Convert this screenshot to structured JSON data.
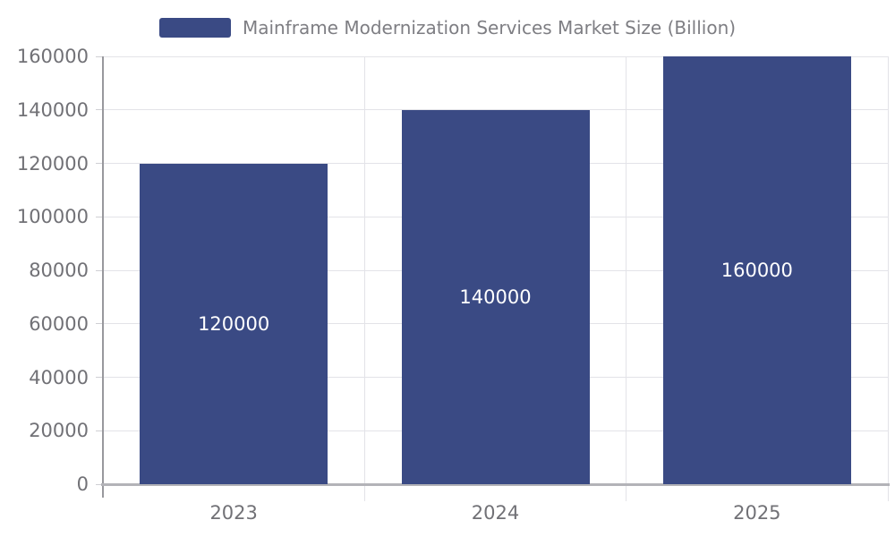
{
  "legend": {
    "label": "Mainframe Modernization Services Market Size (Billion)"
  },
  "chart_data": {
    "type": "bar",
    "title": "Mainframe Modernization Services Market Size (Billion)",
    "categories": [
      "2023",
      "2024",
      "2025"
    ],
    "values": [
      120000,
      140000,
      160000
    ],
    "bar_labels": [
      "120000",
      "140000",
      "160000"
    ],
    "xlabel": "",
    "ylabel": "",
    "ylim": [
      0,
      160000
    ],
    "y_tick_step": 20000,
    "y_tick_labels": [
      "0",
      "20000",
      "40000",
      "60000",
      "80000",
      "100000",
      "120000",
      "140000",
      "160000"
    ],
    "grid": true,
    "legend_position": "top-center",
    "colors": {
      "bar": "#3A4A84",
      "bar_label_text": "#FFFFFF",
      "grid_line": "#E3E3E8",
      "y_axis_line": "#98989D",
      "x_axis_line": "#B3B3B8",
      "tick_mark": "#CFCFD4",
      "axis_text": "#717176",
      "legend_text": "#7E7E83",
      "background": "#FFFFFF"
    }
  }
}
